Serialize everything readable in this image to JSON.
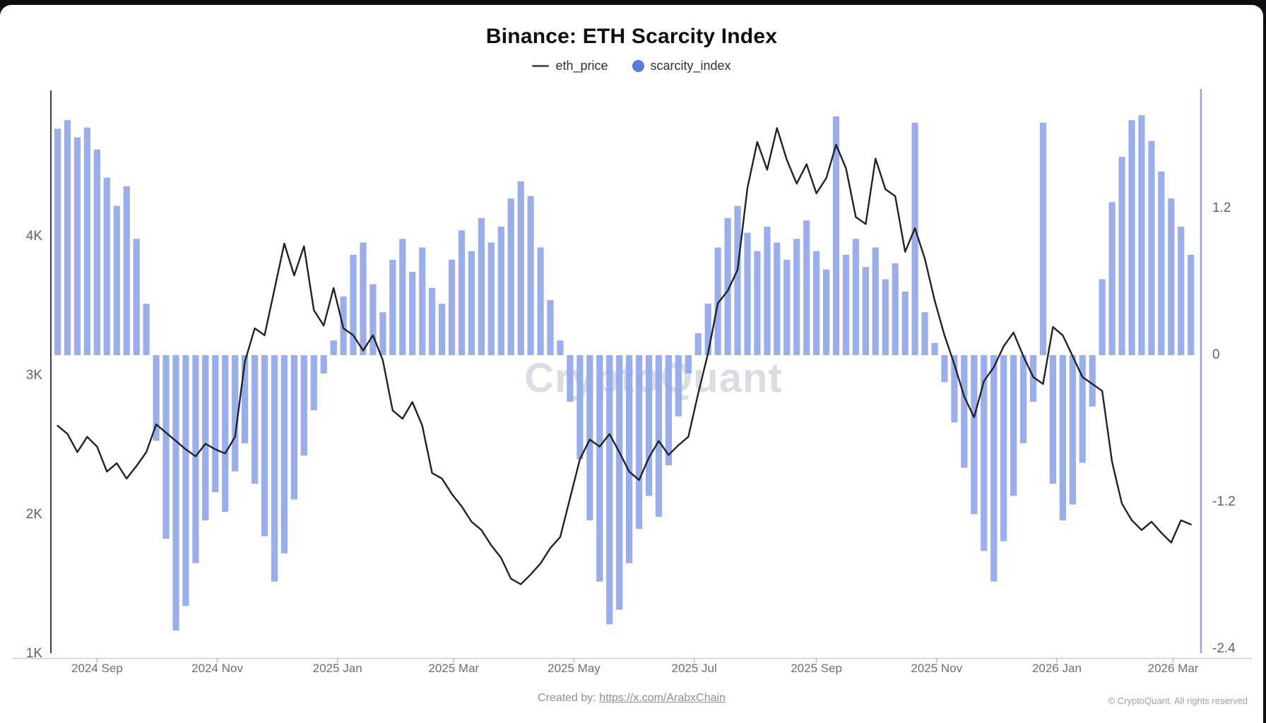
{
  "title": "Binance: ETH Scarcity Index",
  "watermark": "CryptoQuant",
  "legend": [
    {
      "label": "eth_price",
      "swatch": "line-swatch",
      "color": "#54565c"
    },
    {
      "label": "scarcity_index",
      "swatch": "dot-swatch",
      "color": "#5a78e0"
    }
  ],
  "footer": {
    "created_by_label": "Created by:",
    "created_by_link": "https://x.com/ArabxChain",
    "copyright": "© CryptoQuant. All rights reserved"
  },
  "chart_data": {
    "type": "combo",
    "title": "Binance: ETH Scarcity Index",
    "x_start_date": "2024-08-12",
    "x_interval_days": 5,
    "x_tick_labels": [
      "2024 Sep",
      "2024 Nov",
      "2025 Jan",
      "2025 Mar",
      "2025 May",
      "2025 Jul",
      "2025 Sep",
      "2025 Nov",
      "2026 Jan",
      "2026 Mar"
    ],
    "left_axis": {
      "label": "eth_price",
      "scale": "linear",
      "ticks": [
        "4K",
        "3K",
        "2K",
        "1K"
      ],
      "tick_values": [
        4000,
        3000,
        2000,
        1000
      ],
      "range": [
        1005,
        5050
      ]
    },
    "right_axis": {
      "label": "scarcity_index",
      "scale": "linear",
      "ticks": [
        "1.2",
        "0",
        "-1.2",
        "-2.4"
      ],
      "tick_values": [
        1.2,
        0,
        -1.2,
        -2.4
      ],
      "range": [
        -2.44,
        2.17
      ]
    },
    "grid": false,
    "legend_position": "top-center",
    "series": [
      {
        "name": "eth_price",
        "type": "line",
        "axis": "left",
        "color": "#222222",
        "values": [
          2640,
          2580,
          2450,
          2560,
          2490,
          2310,
          2370,
          2260,
          2350,
          2450,
          2650,
          2590,
          2530,
          2470,
          2420,
          2510,
          2470,
          2440,
          2560,
          3100,
          3340,
          3290,
          3620,
          3950,
          3720,
          3930,
          3470,
          3360,
          3630,
          3340,
          3290,
          3180,
          3290,
          3110,
          2750,
          2690,
          2810,
          2640,
          2300,
          2260,
          2150,
          2060,
          1950,
          1890,
          1780,
          1690,
          1540,
          1500,
          1570,
          1650,
          1760,
          1840,
          2120,
          2400,
          2540,
          2490,
          2580,
          2450,
          2310,
          2250,
          2410,
          2530,
          2430,
          2500,
          2560,
          2870,
          3160,
          3520,
          3610,
          3760,
          4350,
          4680,
          4480,
          4780,
          4550,
          4380,
          4520,
          4310,
          4420,
          4660,
          4490,
          4140,
          4090,
          4560,
          4340,
          4290,
          3890,
          4060,
          3840,
          3540,
          3290,
          3080,
          2850,
          2700,
          2960,
          3060,
          3210,
          3310,
          3140,
          2990,
          2940,
          3350,
          3290,
          3140,
          2990,
          2940,
          2890,
          2380,
          2080,
          1960,
          1890,
          1950,
          1870,
          1800,
          1960,
          1930
        ]
      },
      {
        "name": "scarcity_index",
        "type": "bar",
        "axis": "right",
        "color": "#95a9ec",
        "values": [
          1.85,
          1.92,
          1.78,
          1.86,
          1.68,
          1.45,
          1.22,
          1.38,
          0.95,
          0.42,
          -0.7,
          -1.5,
          -2.25,
          -2.05,
          -1.7,
          -1.35,
          -1.12,
          -1.28,
          -0.95,
          -0.72,
          -1.05,
          -1.48,
          -1.85,
          -1.62,
          -1.18,
          -0.82,
          -0.45,
          -0.15,
          0.12,
          0.48,
          0.82,
          0.92,
          0.58,
          0.35,
          0.78,
          0.95,
          0.68,
          0.88,
          0.55,
          0.42,
          0.78,
          1.02,
          0.85,
          1.12,
          0.92,
          1.05,
          1.28,
          1.42,
          1.3,
          0.88,
          0.45,
          0.12,
          -0.38,
          -0.85,
          -1.35,
          -1.85,
          -2.2,
          -2.08,
          -1.7,
          -1.42,
          -1.15,
          -1.32,
          -0.9,
          -0.5,
          -0.15,
          0.18,
          0.42,
          0.88,
          1.12,
          1.22,
          1.0,
          0.85,
          1.05,
          0.92,
          0.78,
          0.95,
          1.1,
          0.85,
          0.7,
          1.95,
          0.82,
          0.95,
          0.72,
          0.88,
          0.62,
          0.75,
          0.52,
          1.9,
          0.35,
          0.1,
          -0.22,
          -0.55,
          -0.92,
          -1.3,
          -1.6,
          -1.85,
          -1.52,
          -1.15,
          -0.72,
          -0.38,
          1.9,
          -1.05,
          -1.35,
          -1.22,
          -0.88,
          -0.42,
          0.62,
          1.25,
          1.62,
          1.92,
          1.96,
          1.75,
          1.5,
          1.28,
          1.05,
          0.82
        ]
      }
    ]
  }
}
